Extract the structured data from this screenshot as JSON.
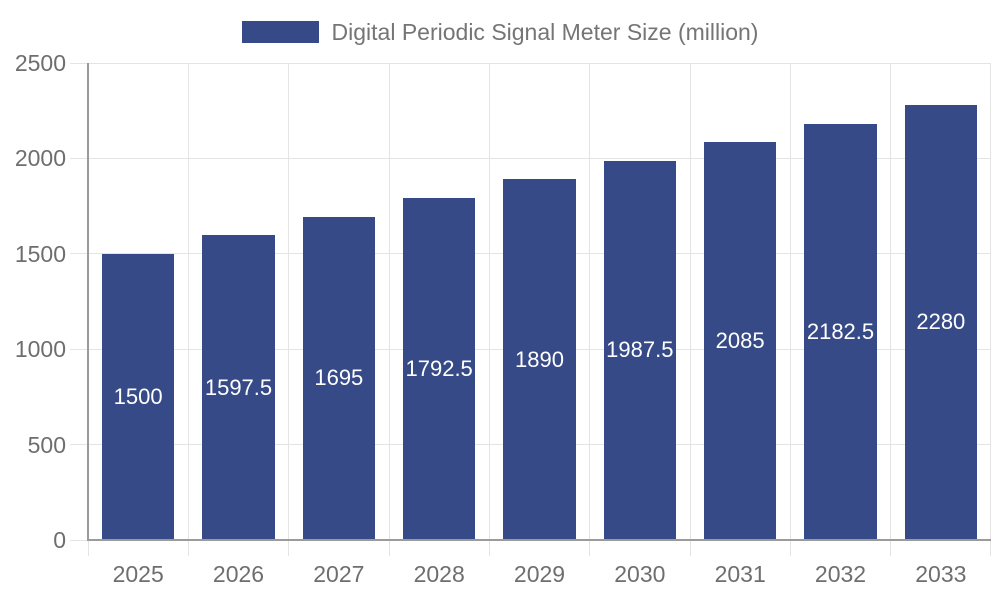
{
  "chart_data": {
    "type": "bar",
    "title": "Digital Periodic Signal Meter Size (million)",
    "categories": [
      "2025",
      "2026",
      "2027",
      "2028",
      "2029",
      "2030",
      "2031",
      "2032",
      "2033"
    ],
    "series": [
      {
        "name": "Digital Periodic Signal Meter Size (million)",
        "values": [
          1500,
          1597.5,
          1695,
          1792.5,
          1890,
          1987.5,
          2085,
          2182.5,
          2280
        ]
      }
    ],
    "xlabel": "",
    "ylabel": "",
    "ylim": [
      0,
      2500
    ],
    "yticks": [
      0,
      500,
      1000,
      1500,
      2000,
      2500
    ],
    "grid": true,
    "legend_position": "top",
    "value_label_position": "inside-middle",
    "colors": {
      "bar": "#374A88",
      "grid": "#e4e4e4",
      "axis": "#9b9b9b",
      "tick_text": "#6e6e6e",
      "legend_text": "#757575",
      "value_text": "#ffffff",
      "background": "#ffffff"
    }
  }
}
